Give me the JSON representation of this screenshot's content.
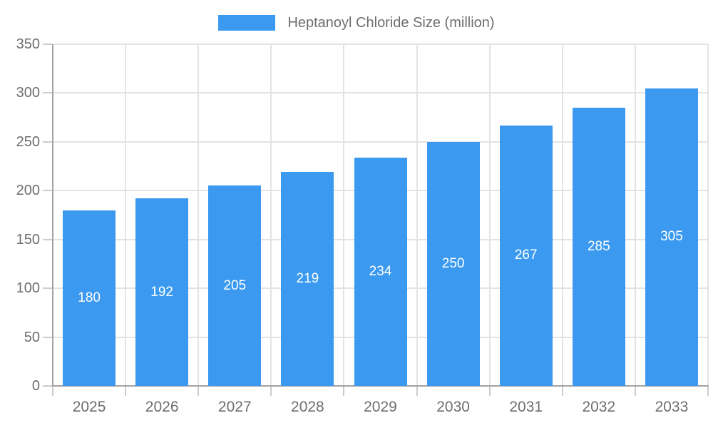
{
  "legend": {
    "label": "Heptanoyl Chloride Size (million)"
  },
  "chart_data": {
    "type": "bar",
    "title": "Heptanoyl Chloride Size (million)",
    "categories": [
      "2025",
      "2026",
      "2027",
      "2028",
      "2029",
      "2030",
      "2031",
      "2032",
      "2033"
    ],
    "series": [
      {
        "name": "Heptanoyl Chloride Size (million)",
        "values": [
          180,
          192,
          205,
          219,
          234,
          250,
          267,
          285,
          305
        ]
      }
    ],
    "value_labels": [
      180,
      192,
      205,
      219,
      234,
      250,
      267,
      285,
      305
    ],
    "xlabel": "",
    "ylabel": "",
    "ylim": [
      0,
      350
    ],
    "ytick_step": 50,
    "yticks": [
      0,
      50,
      100,
      150,
      200,
      250,
      300,
      350
    ],
    "grid": true,
    "legend_position": "top-center",
    "value_label_style": "inside-center-white"
  },
  "colors": {
    "bar": "#3b9af0",
    "grid": "#e3e3e3",
    "axis": "#a3a3a3",
    "tick": "#cccccc",
    "label_text": "#6e6e6e",
    "value_text": "#ffffff",
    "background": "#ffffff"
  }
}
